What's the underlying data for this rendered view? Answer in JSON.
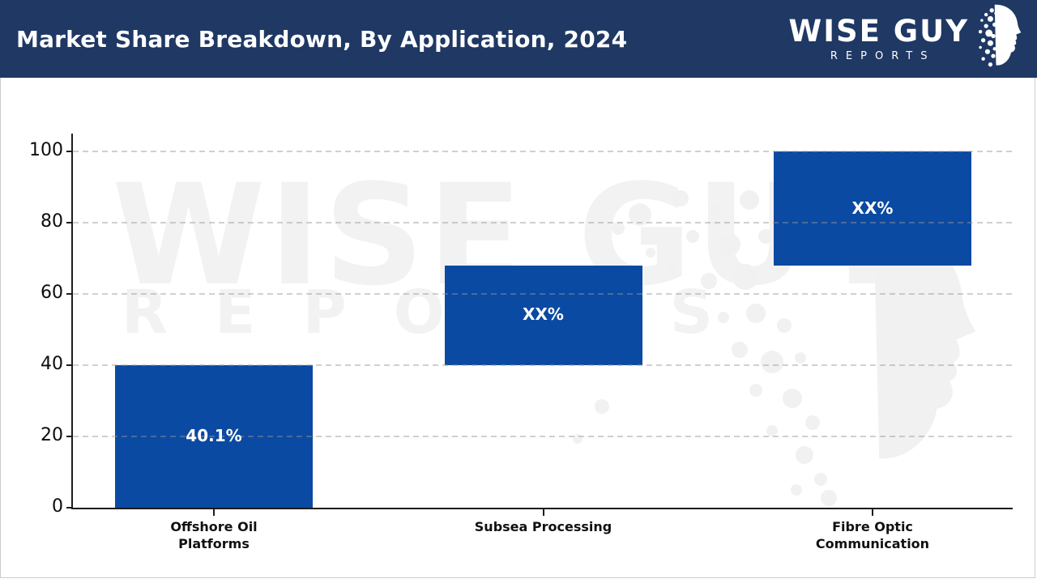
{
  "header": {
    "title": "Market Share Breakdown, By Application, 2024",
    "logo": {
      "line1": "WISE GUY",
      "line2": "REPORTS"
    }
  },
  "watermark": {
    "line1": "WISE GUY",
    "line2": "REPORTS"
  },
  "colors": {
    "header_bg": "#1f3864",
    "bar": "#0b4aa2",
    "bar_label": "#ffffff",
    "watermark": "#f2f2f2",
    "grid": "rgba(150,150,150,0.45)",
    "axis": "#1c1c1c"
  },
  "chart_data": {
    "type": "bar",
    "subtype": "floating_segment_breakdown",
    "title": "Market Share Breakdown, By Application, 2024",
    "categories": [
      "Offshore Oil\nPlatforms",
      "Subsea Processing",
      "Fibre Optic\nCommunication"
    ],
    "series": [
      {
        "category": "Offshore Oil Platforms",
        "start": 0,
        "end": 40.1,
        "label": "40.1%"
      },
      {
        "category": "Subsea Processing",
        "start": 40.1,
        "end": 67.9,
        "label": "XX%"
      },
      {
        "category": "Fibre Optic Communication",
        "start": 67.9,
        "end": 100,
        "label": "XX%"
      }
    ],
    "ylim": [
      0,
      100
    ],
    "yticks": [
      0,
      20,
      40,
      60,
      80,
      100
    ],
    "grid": "horizontal-dashed",
    "legend": "none",
    "xlabel": "",
    "ylabel": ""
  }
}
